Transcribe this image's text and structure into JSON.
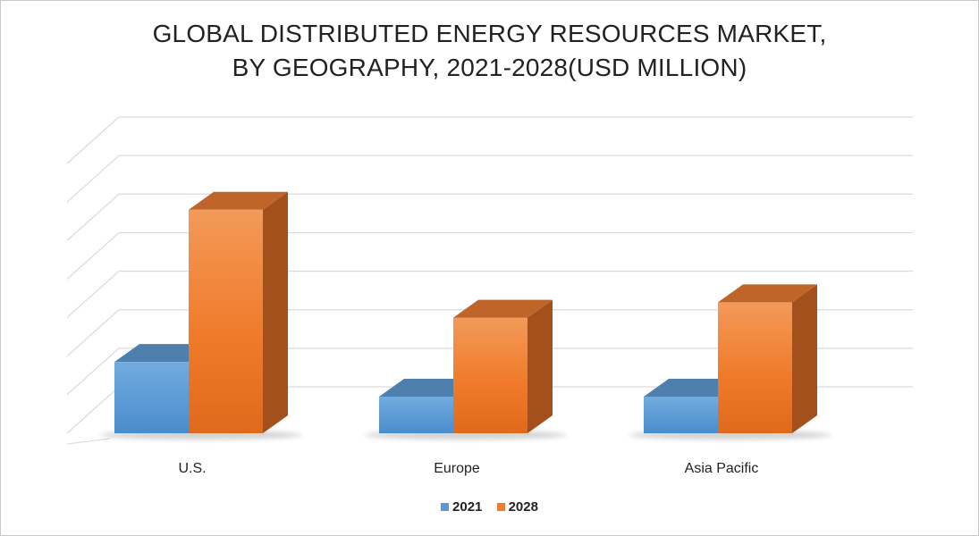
{
  "chart_data": {
    "type": "bar",
    "title_lines": [
      "GLOBAL DISTRIBUTED ENERGY RESOURCES  MARKET,",
      "BY GEOGRAPHY, 2021-2028(USD MILLION)"
    ],
    "categories": [
      "U.S.",
      "Europe",
      "Asia Pacific"
    ],
    "series": [
      {
        "name": "2021",
        "values": [
          1.85,
          0.95,
          0.95
        ],
        "color": "#5b9bd5"
      },
      {
        "name": "2028",
        "values": [
          5.8,
          3.0,
          3.4
        ],
        "color": "#ed7d31"
      }
    ],
    "ylim": [
      0,
      7
    ],
    "gridlines": 7,
    "grid": true,
    "y_tick_labels_shown": false,
    "legend_position": "bottom",
    "style": "3d-clustered-column"
  }
}
